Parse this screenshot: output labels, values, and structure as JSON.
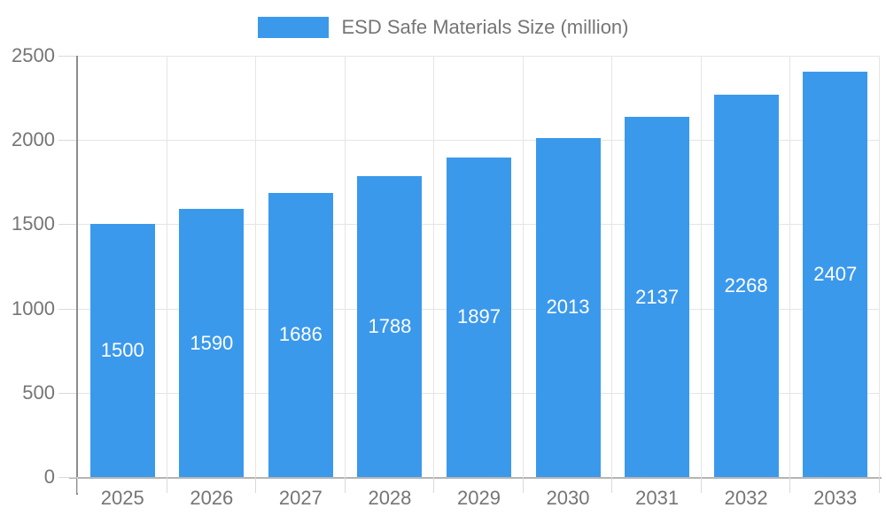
{
  "legend": {
    "label": "ESD Safe Materials Size (million)"
  },
  "colors": {
    "bar": "#3b99ec",
    "grid": "#e5e5e5",
    "y_axis_line": "#8c8c8c",
    "x_axis_line": "#b5b5b5",
    "tick": "#d9d9d9",
    "axis_text": "#757575",
    "value_text": "#ffffff",
    "background": "#ffffff"
  },
  "chart_data": {
    "type": "bar",
    "title": "ESD Safe Materials Size (million)",
    "categories": [
      "2025",
      "2026",
      "2027",
      "2028",
      "2029",
      "2030",
      "2031",
      "2032",
      "2033"
    ],
    "series": [
      {
        "name": "ESD Safe Materials Size (million)",
        "values": [
          1500,
          1590,
          1686,
          1788,
          1897,
          2013,
          2137,
          2268,
          2407
        ]
      }
    ],
    "xlabel": "",
    "ylabel": "",
    "ylim": [
      0,
      2500
    ],
    "yticks": [
      0,
      500,
      1000,
      1500,
      2000,
      2500
    ],
    "grid": true,
    "legend_position": "top-center",
    "value_label_position": "inside-center"
  }
}
